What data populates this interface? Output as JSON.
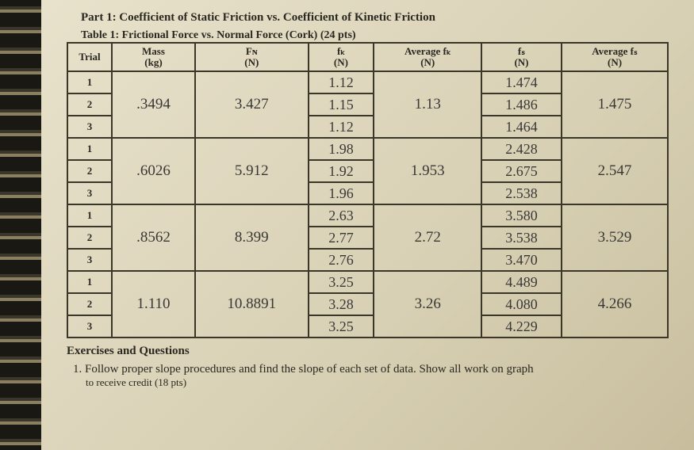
{
  "title": "Part 1: Coefficient of Static Friction vs. Coefficient of Kinetic Friction",
  "table_caption": "Table 1: Frictional Force vs. Normal Force (Cork) (24 pts)",
  "headers": {
    "trial": "Trial",
    "mass": "Mass\n(kg)",
    "fn": "Fɴ\n(N)",
    "fk": "fₖ\n(N)",
    "avg_fk": "Average fₖ\n(N)",
    "fs": "fₛ\n(N)",
    "avg_fs": "Average fₛ\n(N)"
  },
  "groups": [
    {
      "trials": [
        "1",
        "2",
        "3"
      ],
      "mass": ".3494",
      "fn": "3.427",
      "fk": [
        "1.12",
        "1.15",
        "1.12"
      ],
      "avg_fk": "1.13",
      "fs": [
        "1.474",
        "1.486",
        "1.464"
      ],
      "avg_fs": "1.475"
    },
    {
      "trials": [
        "1",
        "2",
        "3"
      ],
      "mass": ".6026",
      "fn": "5.912",
      "fk": [
        "1.98",
        "1.92",
        "1.96"
      ],
      "avg_fk": "1.953",
      "fs": [
        "2.428",
        "2.675",
        "2.538"
      ],
      "avg_fs": "2.547"
    },
    {
      "trials": [
        "1",
        "2",
        "3"
      ],
      "mass": ".8562",
      "fn": "8.399",
      "fk": [
        "2.63",
        "2.77",
        "2.76"
      ],
      "avg_fk": "2.72",
      "fs": [
        "3.580",
        "3.538",
        "3.470"
      ],
      "avg_fs": "3.529"
    },
    {
      "trials": [
        "1",
        "2",
        "3"
      ],
      "mass": "1.110",
      "fn": "10.8891",
      "fk": [
        "3.25",
        "3.28",
        "3.25"
      ],
      "avg_fk": "3.26",
      "fs": [
        "4.489",
        "4.080",
        "4.229"
      ],
      "avg_fs": "4.266"
    }
  ],
  "exercises_heading": "Exercises and Questions",
  "question1": "1.  Follow proper slope procedures and find the slope of each set of data. Show all work on graph",
  "question1_cut": "to receive credit  (18 pts)"
}
